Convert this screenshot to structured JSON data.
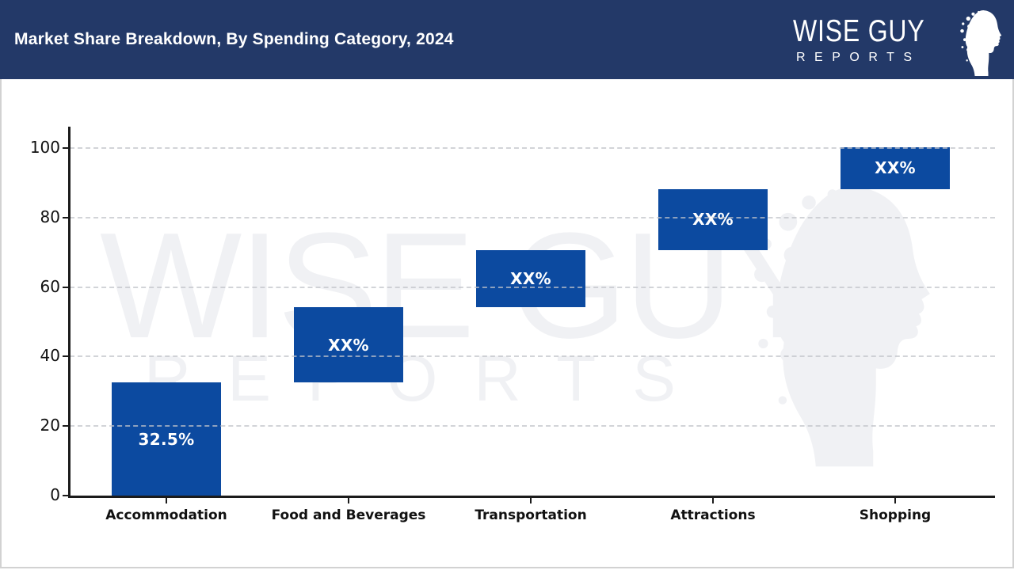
{
  "header": {
    "title": "Market Share Breakdown, By Spending Category, 2024",
    "bg_color": "#233968",
    "logo": {
      "line1": "WISE GUY",
      "line2": "REPORTS"
    }
  },
  "watermark": {
    "line1": "WISE GUY",
    "line2": "REPORTS"
  },
  "chart_data": {
    "type": "bar",
    "subtype": "waterfall",
    "title": "",
    "xlabel": "",
    "ylabel": "",
    "categories": [
      "Accommodation",
      "Food and Beverages",
      "Transportation",
      "Attractions",
      "Shopping"
    ],
    "segments": [
      {
        "category": "Accommodation",
        "start": 0,
        "end": 32.5,
        "label": "32.5%"
      },
      {
        "category": "Food and Beverages",
        "start": 32.5,
        "end": 54.2,
        "label": "XX%"
      },
      {
        "category": "Transportation",
        "start": 54.2,
        "end": 70.6,
        "label": "XX%"
      },
      {
        "category": "Attractions",
        "start": 70.6,
        "end": 88.2,
        "label": "XX%"
      },
      {
        "category": "Shopping",
        "start": 88.2,
        "end": 100.2,
        "label": "XX%"
      }
    ],
    "y_ticks": [
      0,
      20,
      40,
      60,
      80,
      100
    ],
    "ylim": [
      0,
      106
    ],
    "grid": "horizontal-dashed",
    "legend": "none",
    "bar_color": "#0C4AA0",
    "bar_label_color": "#ffffff",
    "axis_color": "#1b1b1b",
    "gridline_color": "#c1c4c9"
  }
}
